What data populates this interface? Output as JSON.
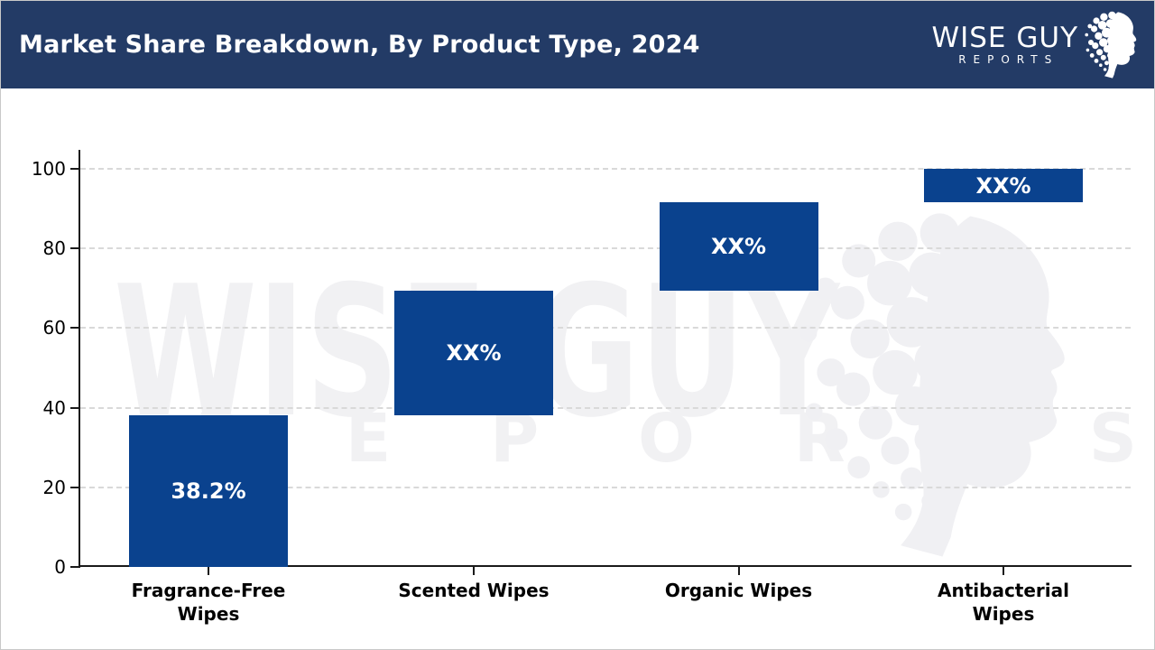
{
  "header": {
    "title": "Market Share Breakdown, By Product Type, 2024",
    "logo": {
      "line1": "WISE GUY",
      "line2": "REPORTS"
    }
  },
  "watermark": {
    "line1": "WISE GUY",
    "line2": "R E P O R T S"
  },
  "colors": {
    "header_bg": "#233b66",
    "title_text": "#ffffff",
    "bar": "#0a428e",
    "bar_label": "#ffffff",
    "axis": "#1a1a1a",
    "gridline": "#d9d9d9",
    "tick_label": "#000000",
    "watermark": "#f1f1f3",
    "page_border": "#c9c9c9"
  },
  "chart_data": {
    "type": "bar",
    "subtype": "waterfall",
    "title": "Market Share Breakdown, By Product Type, 2024",
    "categories": [
      "Fragrance-Free Wipes",
      "Scented Wipes",
      "Organic Wipes",
      "Antibacterial Wipes"
    ],
    "category_label_lines": [
      [
        "Fragrance-Free",
        "Wipes"
      ],
      [
        "Scented Wipes"
      ],
      [
        "Organic Wipes"
      ],
      [
        "Antibacterial",
        "Wipes"
      ]
    ],
    "series": [
      {
        "name": "Market Share",
        "segments": [
          {
            "category": "Fragrance-Free Wipes",
            "start": 0,
            "end": 38.2,
            "label": "38.2%"
          },
          {
            "category": "Scented Wipes",
            "start": 38.2,
            "end": 69.4,
            "label": "XX%"
          },
          {
            "category": "Organic Wipes",
            "start": 69.4,
            "end": 91.5,
            "label": "XX%"
          },
          {
            "category": "Antibacterial Wipes",
            "start": 91.5,
            "end": 100,
            "label": "XX%"
          }
        ]
      }
    ],
    "xlabel": "",
    "ylabel": "",
    "ylim": [
      0,
      100
    ],
    "yticks": [
      0,
      20,
      40,
      60,
      80,
      100
    ],
    "grid": "horizontal-dashed",
    "legend": "none"
  }
}
